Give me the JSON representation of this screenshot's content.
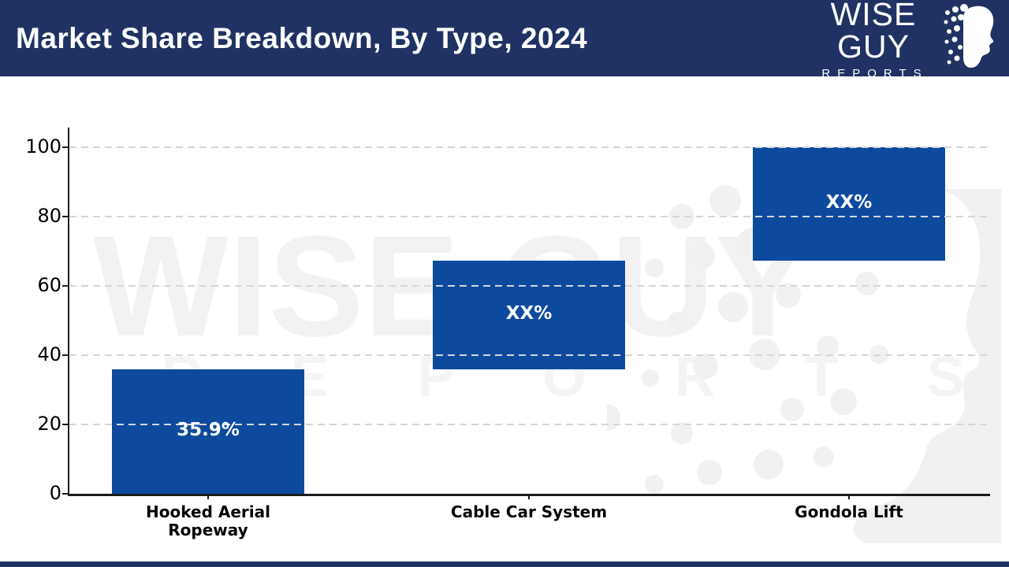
{
  "header": {
    "title": "Market Share Breakdown, By Type, 2024",
    "bg_color": "#203263",
    "logo": {
      "line1": "WISE GUY",
      "line2": "REPORTS"
    }
  },
  "watermark": {
    "line1": "WISE GUY",
    "line2": "R E P O R T S"
  },
  "chart_data": {
    "type": "bar",
    "subtype": "waterfall",
    "title": "Market Share Breakdown, By Type, 2024",
    "categories": [
      "Hooked Aerial\nRopeway",
      "Cable Car System",
      "Gondola Lift"
    ],
    "segments": [
      {
        "category": "Hooked Aerial Ropeway",
        "start": 0,
        "end": 35.9,
        "value_label": "35.9%"
      },
      {
        "category": "Cable Car System",
        "start": 35.9,
        "end": 67.3,
        "value_label": "XX%"
      },
      {
        "category": "Gondola Lift",
        "start": 67.3,
        "end": 100,
        "value_label": "XX%"
      }
    ],
    "yticks": [
      0,
      20,
      40,
      60,
      80,
      100
    ],
    "ylim": [
      0,
      105
    ],
    "grid": "dashed-horizontal-over-bars",
    "legend": "none",
    "bar_color": "#0d4a9e",
    "value_label_color": "#ffffff",
    "xlabel": "",
    "ylabel": ""
  },
  "footer": {
    "bg_color": "#203263"
  }
}
